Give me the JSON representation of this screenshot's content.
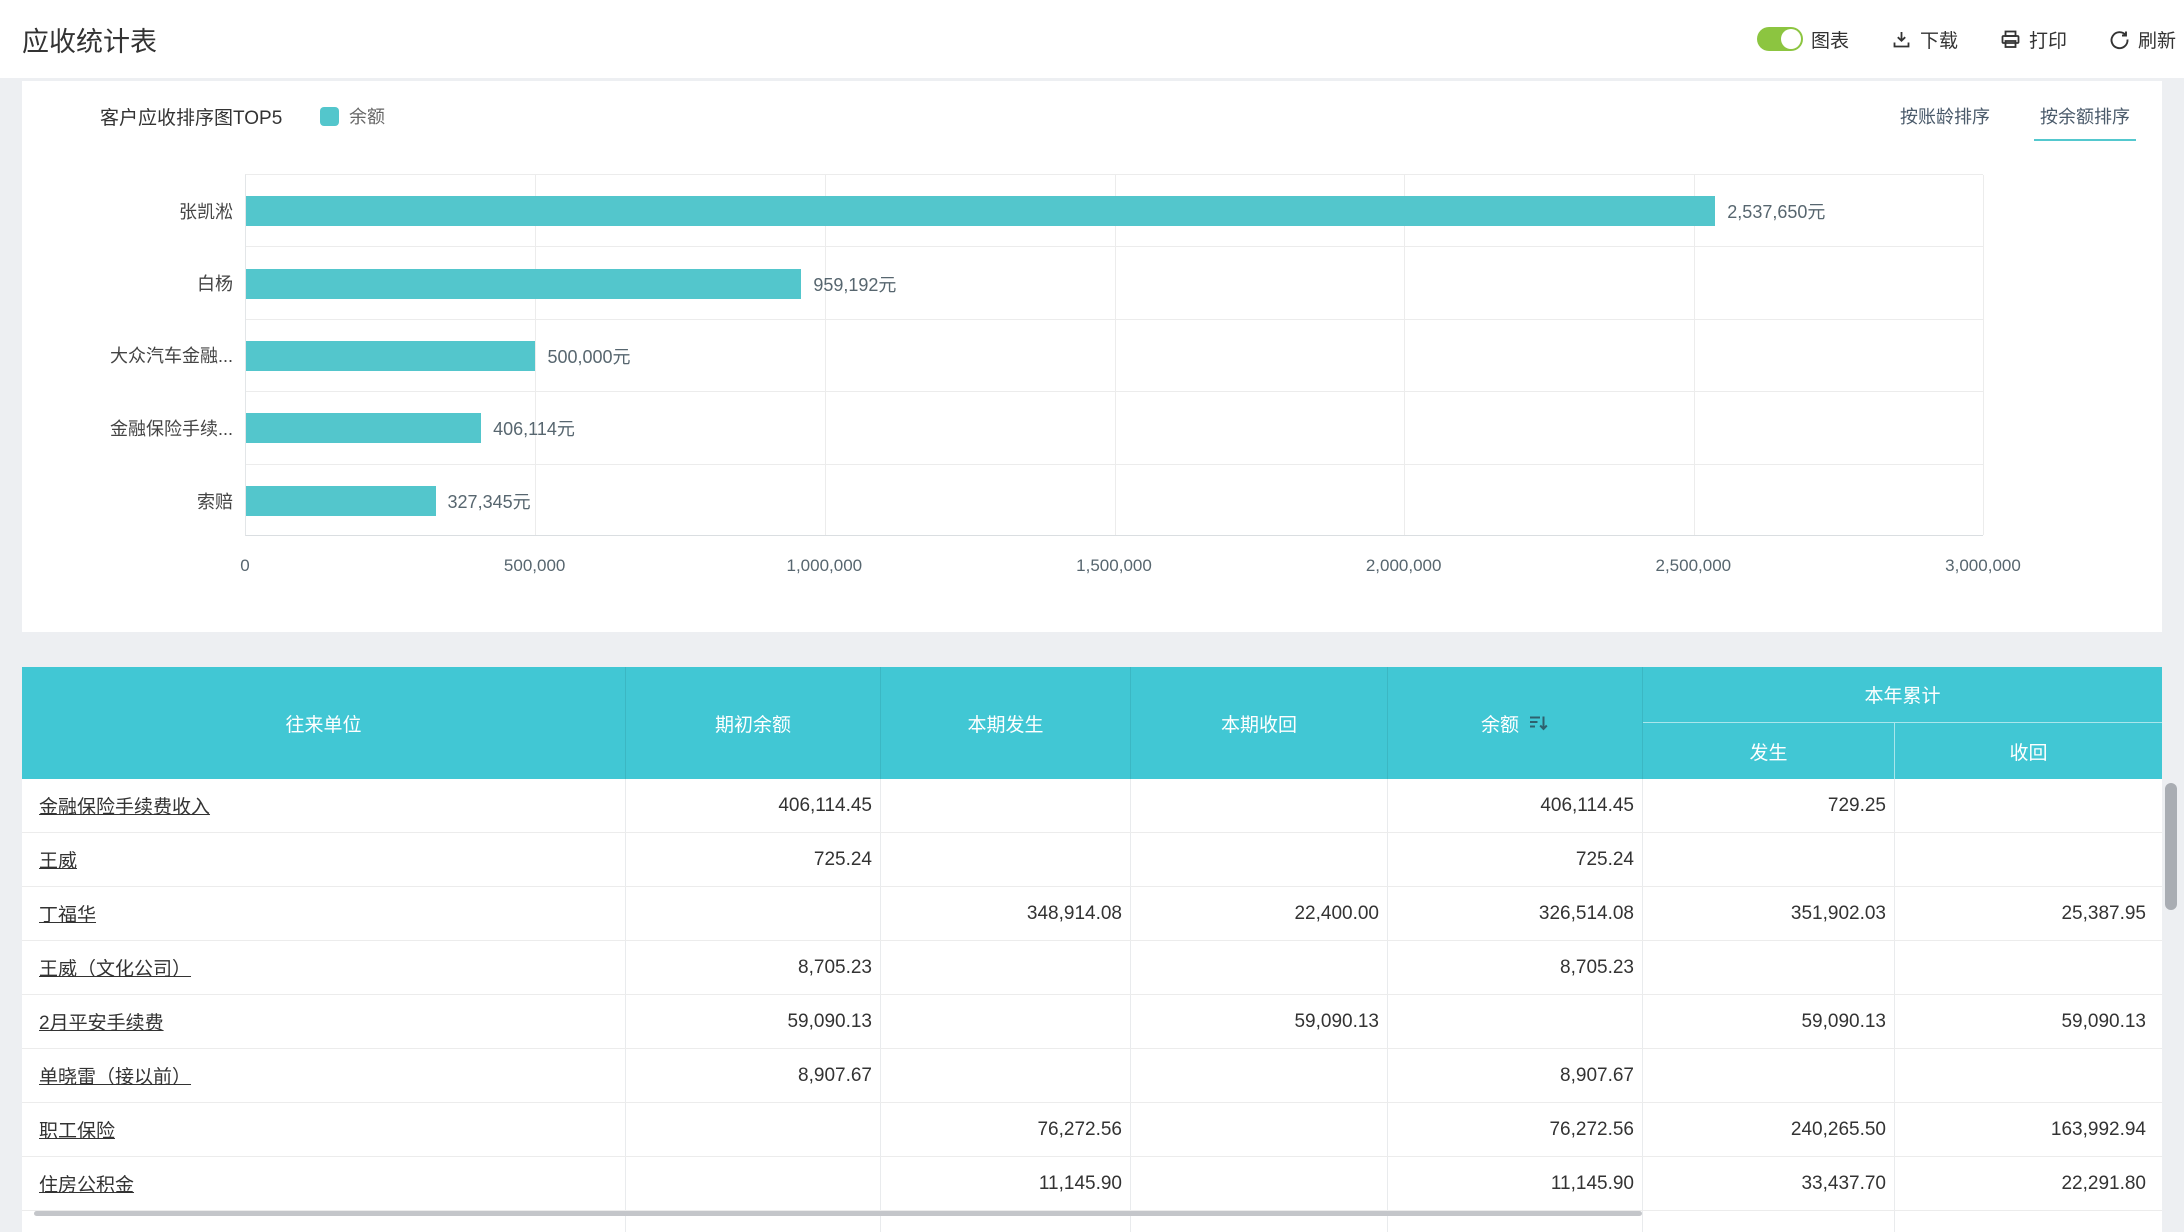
{
  "app": {
    "title": "应收统计表"
  },
  "toolbar": {
    "chart_toggle_label": "图表",
    "chart_toggle_on": true,
    "download_label": "下载",
    "print_label": "打印",
    "refresh_label": "刷新"
  },
  "colors": {
    "header_teal": "#41C7D4",
    "bar_teal": "#53C6CC",
    "toggle_green": "#8CC540",
    "tab_underline": "#54C8CE"
  },
  "chart": {
    "title": "客户应收排序图TOP5",
    "legend_label": "余额",
    "sort_tabs": [
      {
        "label": "按账龄排序",
        "active": false
      },
      {
        "label": "按余额排序",
        "active": true
      }
    ]
  },
  "chart_data": {
    "type": "bar",
    "orientation": "horizontal",
    "title": "客户应收排序图TOP5",
    "legend": [
      "余额"
    ],
    "categories": [
      "张凯淞",
      "白杨",
      "大众汽车金融...",
      "金融保险手续...",
      "索赔"
    ],
    "values": [
      2537650,
      959192,
      500000,
      406114,
      327345
    ],
    "value_labels": [
      "2,537,650元",
      "959,192元",
      "500,000元",
      "406,114元",
      "327,345元"
    ],
    "unit": "元",
    "xlim": [
      0,
      3000000
    ],
    "x_tick_values": [
      0,
      500000,
      1000000,
      1500000,
      2000000,
      2500000,
      3000000
    ],
    "x_ticks": [
      "0",
      "500,000",
      "1,000,000",
      "1,500,000",
      "2,000,000",
      "2,500,000",
      "3,000,000"
    ],
    "grid": true,
    "legend_position": "top-left"
  },
  "table": {
    "columns": {
      "counterparty": "往来单位",
      "opening": "期初余额",
      "incurred": "本期发生",
      "recovered": "本期收回",
      "balance": "余额",
      "ytd_group": "本年累计",
      "ytd_incurred": "发生",
      "ytd_recovered": "收回"
    },
    "balance_sort": "descending",
    "rows": [
      {
        "name": "金融保险手续费收入",
        "opening": "406,114.45",
        "incurred": "",
        "recovered": "",
        "balance": "406,114.45",
        "ytd_incurred": "729.25",
        "ytd_recovered": ""
      },
      {
        "name": "王威",
        "opening": "725.24",
        "incurred": "",
        "recovered": "",
        "balance": "725.24",
        "ytd_incurred": "",
        "ytd_recovered": ""
      },
      {
        "name": "丁福华",
        "opening": "",
        "incurred": "348,914.08",
        "recovered": "22,400.00",
        "balance": "326,514.08",
        "ytd_incurred": "351,902.03",
        "ytd_recovered": "25,387.95"
      },
      {
        "name": "王威（文化公司）",
        "opening": "8,705.23",
        "incurred": "",
        "recovered": "",
        "balance": "8,705.23",
        "ytd_incurred": "",
        "ytd_recovered": ""
      },
      {
        "name": "2月平安手续费",
        "opening": "59,090.13",
        "incurred": "",
        "recovered": "59,090.13",
        "balance": "",
        "ytd_incurred": "59,090.13",
        "ytd_recovered": "59,090.13"
      },
      {
        "name": "单晓雷（接以前）",
        "opening": "8,907.67",
        "incurred": "",
        "recovered": "",
        "balance": "8,907.67",
        "ytd_incurred": "",
        "ytd_recovered": ""
      },
      {
        "name": "职工保险",
        "opening": "",
        "incurred": "76,272.56",
        "recovered": "",
        "balance": "76,272.56",
        "ytd_incurred": "240,265.50",
        "ytd_recovered": "163,992.94"
      },
      {
        "name": "住房公积金",
        "opening": "",
        "incurred": "11,145.90",
        "recovered": "",
        "balance": "11,145.90",
        "ytd_incurred": "33,437.70",
        "ytd_recovered": "22,291.80"
      }
    ]
  }
}
